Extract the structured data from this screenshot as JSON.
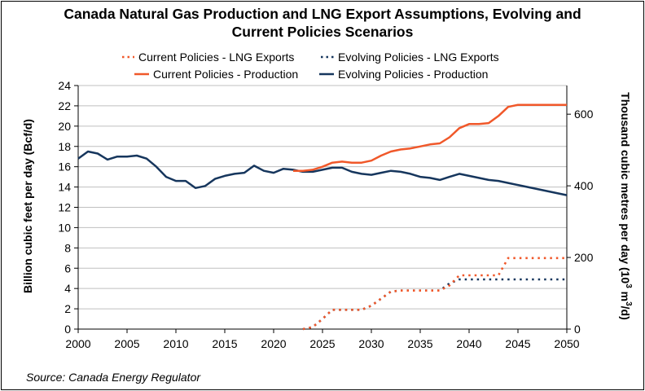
{
  "title_line1": "Canada Natural Gas Production and LNG Export Assumptions, Evolving and",
  "title_line2": "Current Policies Scenarios",
  "source": "Source: Canada Energy Regulator",
  "chart_data": {
    "type": "line",
    "title": "Canada Natural Gas Production and LNG Export Assumptions, Evolving and Current Policies Scenarios",
    "xlabel": "",
    "ylabel": "Billion cubic feet per day (Bcf/d)",
    "y2label_main": "Thousand cubic metres per day (10",
    "y2label_sup": "3",
    "y2label_mid": " m",
    "y2label_end": "/d)",
    "xlim": [
      2000,
      2050
    ],
    "ylim": [
      0,
      24
    ],
    "y2lim": [
      0,
      680
    ],
    "xticks": [
      2000,
      2005,
      2010,
      2015,
      2020,
      2025,
      2030,
      2035,
      2040,
      2045,
      2050
    ],
    "yticks": [
      0,
      2,
      4,
      6,
      8,
      10,
      12,
      14,
      16,
      18,
      20,
      22,
      24
    ],
    "y2ticks": [
      0,
      200,
      400,
      600
    ],
    "grid": true,
    "legend_position": "top",
    "series": [
      {
        "name": "Current Policies - LNG Exports",
        "color": "#f0582a",
        "style": "dotted",
        "x": [
          2023,
          2024,
          2025,
          2026,
          2027,
          2028,
          2029,
          2030,
          2031,
          2032,
          2033,
          2034,
          2035,
          2036,
          2037,
          2038,
          2039,
          2040,
          2041,
          2042,
          2043,
          2044,
          2045,
          2046,
          2047,
          2048,
          2049,
          2050
        ],
        "values": [
          0,
          0.2,
          1.0,
          1.9,
          1.9,
          1.9,
          1.9,
          2.3,
          3.0,
          3.7,
          3.8,
          3.8,
          3.8,
          3.8,
          3.8,
          4.3,
          5.3,
          5.3,
          5.3,
          5.3,
          5.3,
          7.0,
          7.0,
          7.0,
          7.0,
          7.0,
          7.0,
          7.0
        ]
      },
      {
        "name": "Evolving Policies - LNG Exports",
        "color": "#16365d",
        "style": "dotted",
        "x": [
          2023,
          2024,
          2025,
          2026,
          2027,
          2028,
          2029,
          2030,
          2031,
          2032,
          2033,
          2034,
          2035,
          2036,
          2037,
          2038,
          2039,
          2040,
          2041,
          2042,
          2043,
          2044,
          2045,
          2046,
          2047,
          2048,
          2049,
          2050
        ],
        "values": [
          0,
          0.2,
          1.0,
          1.9,
          1.9,
          1.9,
          1.9,
          2.3,
          3.0,
          3.7,
          3.8,
          3.8,
          3.8,
          3.8,
          3.8,
          4.5,
          4.9,
          4.9,
          4.9,
          4.9,
          4.9,
          4.9,
          4.9,
          4.9,
          4.9,
          4.9,
          4.9,
          4.9
        ]
      },
      {
        "name": "Current Policies - Production",
        "color": "#f0582a",
        "style": "solid",
        "x": [
          2022,
          2023,
          2024,
          2025,
          2026,
          2027,
          2028,
          2029,
          2030,
          2031,
          2032,
          2033,
          2034,
          2035,
          2036,
          2037,
          2038,
          2039,
          2040,
          2041,
          2042,
          2043,
          2044,
          2045,
          2046,
          2047,
          2048,
          2049,
          2050
        ],
        "values": [
          15.6,
          15.6,
          15.7,
          16.0,
          16.4,
          16.5,
          16.4,
          16.4,
          16.6,
          17.1,
          17.5,
          17.7,
          17.8,
          18.0,
          18.2,
          18.3,
          18.9,
          19.8,
          20.2,
          20.2,
          20.3,
          21.0,
          21.9,
          22.1,
          22.1,
          22.1,
          22.1,
          22.1,
          22.1
        ]
      },
      {
        "name": "Evolving Policies - Production",
        "color": "#16365d",
        "style": "solid",
        "x": [
          2000,
          2001,
          2002,
          2003,
          2004,
          2005,
          2006,
          2007,
          2008,
          2009,
          2010,
          2011,
          2012,
          2013,
          2014,
          2015,
          2016,
          2017,
          2018,
          2019,
          2020,
          2021,
          2022,
          2023,
          2024,
          2025,
          2026,
          2027,
          2028,
          2029,
          2030,
          2031,
          2032,
          2033,
          2034,
          2035,
          2036,
          2037,
          2038,
          2039,
          2040,
          2041,
          2042,
          2043,
          2044,
          2045,
          2046,
          2047,
          2048,
          2049,
          2050
        ],
        "values": [
          16.8,
          17.5,
          17.3,
          16.7,
          17.0,
          17.0,
          17.1,
          16.8,
          16.0,
          15.0,
          14.6,
          14.6,
          13.9,
          14.1,
          14.8,
          15.1,
          15.3,
          15.4,
          16.1,
          15.6,
          15.4,
          15.8,
          15.7,
          15.5,
          15.5,
          15.7,
          15.9,
          15.9,
          15.5,
          15.3,
          15.2,
          15.4,
          15.6,
          15.5,
          15.3,
          15.0,
          14.9,
          14.7,
          15.0,
          15.3,
          15.1,
          14.9,
          14.7,
          14.6,
          14.4,
          14.2,
          14.0,
          13.8,
          13.6,
          13.4,
          13.2
        ]
      }
    ]
  }
}
